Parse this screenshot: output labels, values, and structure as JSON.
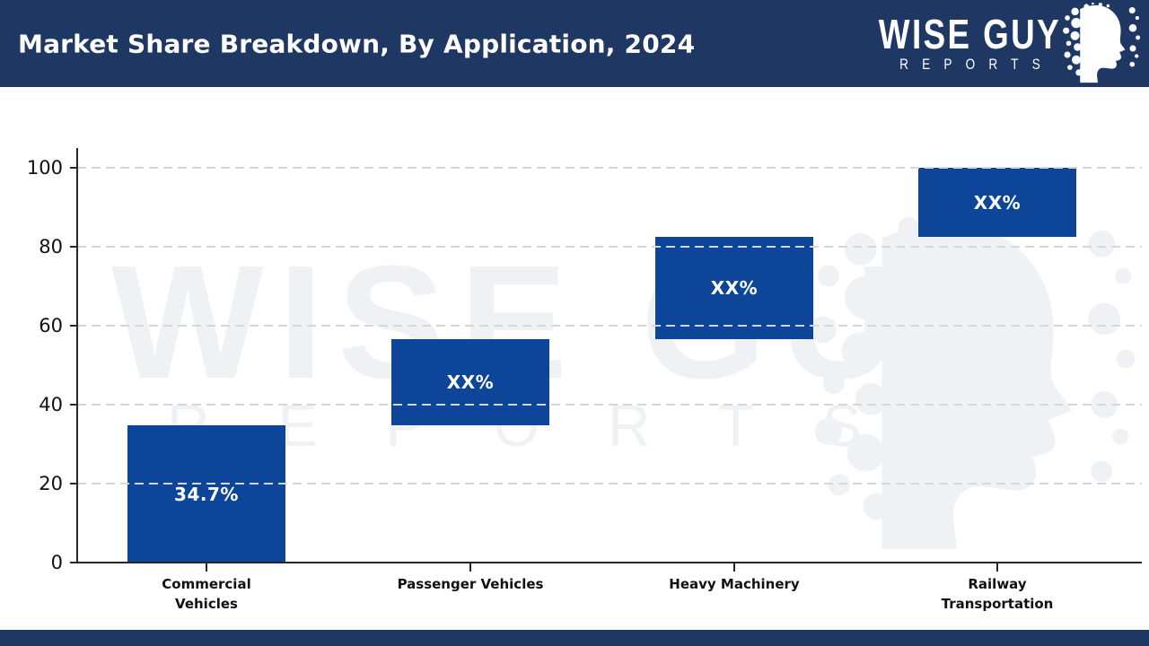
{
  "header": {
    "title": "Market Share Breakdown, By Application, 2024",
    "logo": {
      "wordmark": "WISE GUY",
      "subtext": "REPORTS"
    }
  },
  "watermark": {
    "wordmark": "WISE GUY",
    "subtext": "REPORTS"
  },
  "colors": {
    "header_bg": "#1f3863",
    "footer_bg": "#1f3863",
    "bar_blue": "#0d4599",
    "grid": "#d5d8da",
    "axis": "#262626",
    "watermark": "#eff1f4",
    "bar_label": "#ffffff",
    "tick_text": "#111111"
  },
  "chart_data": {
    "type": "bar",
    "subtype": "waterfall",
    "title": "Market Share Breakdown, By Application, 2024",
    "categories": [
      "Commercial\nVehicles",
      "Passenger Vehicles",
      "Heavy Machinery",
      "Railway\nTransportation"
    ],
    "bars": [
      {
        "category": "Commercial Vehicles",
        "label": "34.7%",
        "start": 0,
        "end": 34.7
      },
      {
        "category": "Passenger Vehicles",
        "label": "XX%",
        "start": 34.7,
        "end": 56.6
      },
      {
        "category": "Heavy Machinery",
        "label": "XX%",
        "start": 56.6,
        "end": 82.5
      },
      {
        "category": "Railway Transportation",
        "label": "XX%",
        "start": 82.5,
        "end": 100
      }
    ],
    "y_ticks": [
      0,
      20,
      40,
      60,
      80,
      100
    ],
    "ylim": [
      0,
      105
    ],
    "xlabel": "",
    "ylabel": "",
    "grid": "horizontal-dashed",
    "legend": "none",
    "bar_color": "#0d4599",
    "label_color": "#ffffff"
  }
}
